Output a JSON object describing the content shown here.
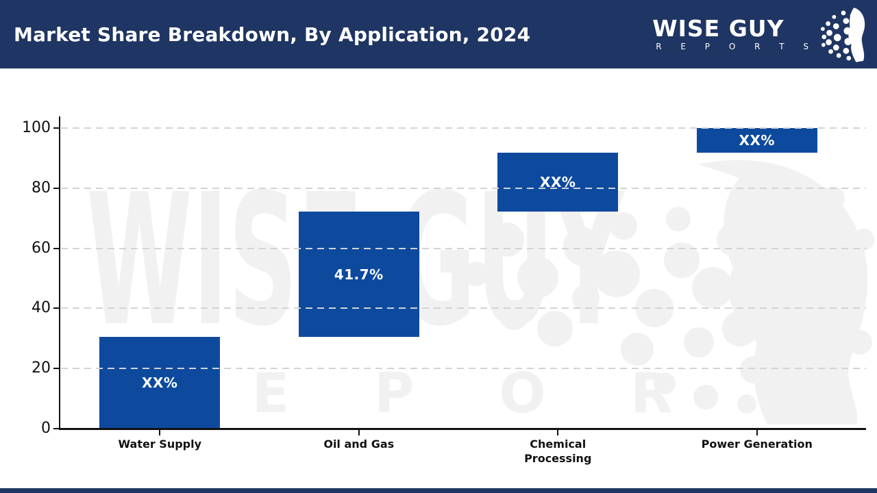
{
  "header": {
    "title": "Market Share Breakdown, By Application, 2024"
  },
  "logo": {
    "name_top": "WISE GUY",
    "name_bottom": "R E P O R T S",
    "head_icon": "dotted-head-profile-icon"
  },
  "watermark": {
    "text_top": "WISE GUY",
    "text_bottom": "R E P O R T S",
    "head_icon": "dotted-head-profile-watermark"
  },
  "colors": {
    "header_navy": "#1f3563",
    "footer_navy": "#1f3563",
    "bar_blue": "#0d4a9e",
    "grid_gray": "#d3d3d3",
    "axis_black": "#111111",
    "watermark_gray": "#f1f1f1",
    "label_white": "#ffffff"
  },
  "chart_data": {
    "type": "bar",
    "variant": "floating-waterfall",
    "title": "Market Share Breakdown, By Application, 2024",
    "xlabel": "",
    "ylabel": "",
    "categories": [
      "Water Supply",
      "Oil and Gas",
      "Chemical\nProcessing",
      "Power Generation"
    ],
    "segments": [
      {
        "category": "Water Supply",
        "start": 0,
        "end": 30.5,
        "label": "XX%"
      },
      {
        "category": "Oil and Gas",
        "start": 30.5,
        "end": 72.2,
        "label": "41.7%"
      },
      {
        "category": "Chemical Processing",
        "start": 72.2,
        "end": 91.8,
        "label": "XX%"
      },
      {
        "category": "Power Generation",
        "start": 91.8,
        "end": 100,
        "label": "XX%"
      }
    ],
    "ylim": [
      0,
      100
    ],
    "yticks": [
      0,
      20,
      40,
      60,
      80,
      100
    ],
    "grid": "horizontal-dashed",
    "gridlines_over_bars": true,
    "legend": "none"
  }
}
